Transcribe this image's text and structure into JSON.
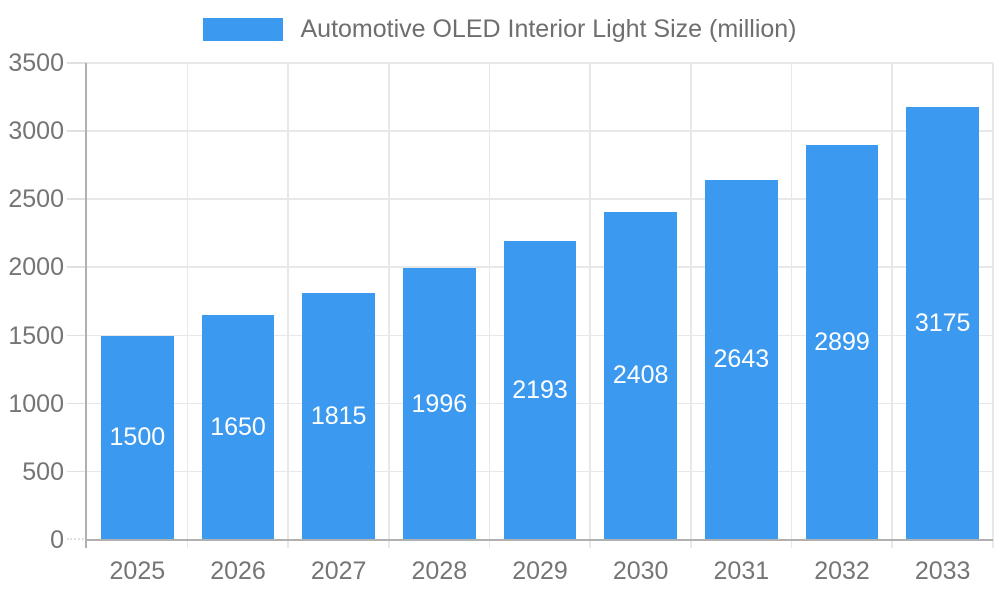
{
  "legend": {
    "label": "Automotive OLED Interior Light Size (million)",
    "swatch_color": "#3b99f0"
  },
  "chart_data": {
    "type": "bar",
    "title": "Automotive OLED Interior Light Size (million)",
    "categories": [
      "2025",
      "2026",
      "2027",
      "2028",
      "2029",
      "2030",
      "2031",
      "2032",
      "2033"
    ],
    "values": [
      1500,
      1650,
      1815,
      1996,
      2193,
      2408,
      2643,
      2899,
      3175
    ],
    "series": [
      {
        "name": "Automotive OLED Interior Light Size (million)",
        "values": [
          1500,
          1650,
          1815,
          1996,
          2193,
          2408,
          2643,
          2899,
          3175
        ]
      }
    ],
    "xlabel": "",
    "ylabel": "",
    "ylim": [
      0,
      3500
    ],
    "yticks": [
      0,
      500,
      1000,
      1500,
      2000,
      2500,
      3000,
      3500
    ],
    "grid": true,
    "legend_position": "top",
    "bar_color": "#3b99f0",
    "value_label_color": "#ffffff"
  },
  "colors": {
    "background": "#ffffff",
    "grid_line": "#e8e8e8",
    "tick_line": "#e0e0e0",
    "axis_line": "#b0b0b0",
    "axis_text": "#757575",
    "legend_text": "#6e6e6e"
  }
}
